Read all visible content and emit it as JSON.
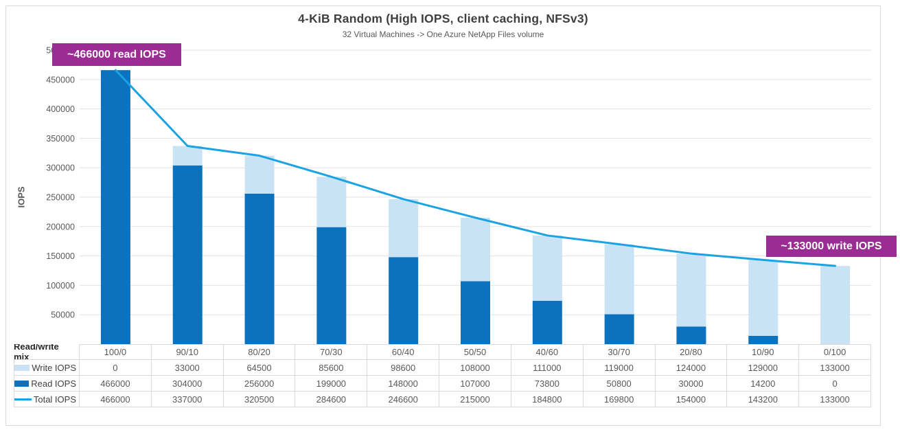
{
  "window": {
    "background": "#FFFFFF",
    "frame_border_color": "#D9D9D9"
  },
  "chart_data": {
    "type": "bar",
    "combo": "stacked vertical bars with line overlay and data table legend",
    "title": "4-KiB Random (High IOPS, client caching, NFSv3)",
    "subtitle": "32 Virtual Machines -> One Azure NetApp Files volume",
    "ylabel": "IOPS",
    "x_header": "Read/write mix",
    "categories": [
      "100/0",
      "90/10",
      "80/20",
      "70/30",
      "60/40",
      "50/50",
      "40/60",
      "30/70",
      "20/80",
      "10/90",
      "0/100"
    ],
    "series": [
      {
        "name": "Write IOPS",
        "type": "bar",
        "role": "stack-top",
        "color": "#C9E3F5",
        "values": [
          0,
          33000,
          64500,
          85600,
          98600,
          108000,
          111000,
          119000,
          124000,
          129000,
          133000
        ]
      },
      {
        "name": "Read IOPS",
        "type": "bar",
        "role": "stack-bottom",
        "color": "#0D72BE",
        "values": [
          466000,
          304000,
          256000,
          199000,
          148000,
          107000,
          73800,
          50800,
          30000,
          14200,
          0
        ]
      },
      {
        "name": "Total IOPS",
        "type": "line",
        "color": "#1AA2E3",
        "values": [
          466000,
          337000,
          320500,
          284600,
          246600,
          215000,
          184800,
          169800,
          154000,
          143200,
          133000
        ]
      }
    ],
    "ylim": [
      0,
      500000
    ],
    "yticks": [
      500000,
      450000,
      400000,
      350000,
      300000,
      250000,
      200000,
      150000,
      100000,
      50000
    ],
    "grid": true,
    "gridline_color": "#E2E2E2",
    "axis_text_color": "#595959",
    "legend_position": "data-table-left-column",
    "annotations": [
      {
        "text": "~466000 read IOPS",
        "bg_color": "#9B2C94",
        "text_color": "#FFFFFF",
        "position": "top-left"
      },
      {
        "text": "~133000 write IOPS",
        "bg_color": "#9B2C94",
        "text_color": "#FFFFFF",
        "position": "right"
      }
    ]
  }
}
